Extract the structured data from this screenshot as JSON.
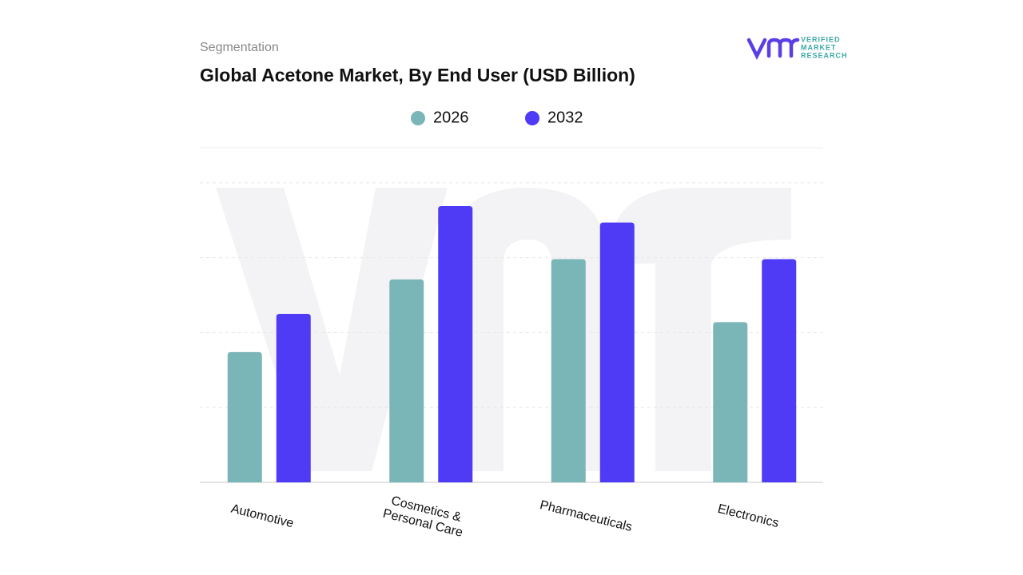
{
  "chart_data": {
    "type": "bar",
    "section_label": "Segmentation",
    "title": "Global Acetone Market, By End User (USD Billion)",
    "categories": [
      "Automotive",
      "Cosmetics & Personal Care",
      "Pharmaceuticals",
      "Electronics"
    ],
    "series": [
      {
        "name": "2026",
        "color": "#7ab5b7",
        "values": [
          1.74,
          2.71,
          2.98,
          2.14
        ]
      },
      {
        "name": "2032",
        "color": "#4f3bf5",
        "values": [
          2.25,
          3.69,
          3.47,
          2.98
        ]
      }
    ],
    "ylim": [
      0,
      4.5
    ],
    "yticks": [
      0,
      1,
      2,
      3,
      4
    ],
    "grid": true
  },
  "logo": {
    "line1": "VERIFIED",
    "line2": "MARKET",
    "line3": "RESEARCH"
  }
}
